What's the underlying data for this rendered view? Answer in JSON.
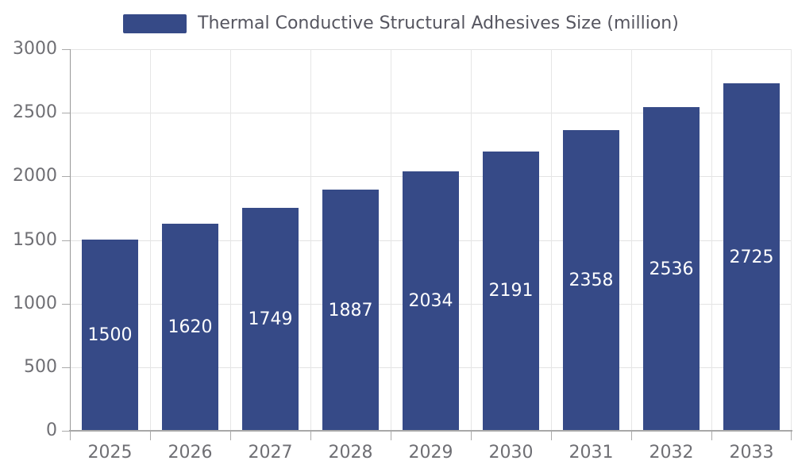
{
  "chart_data": {
    "type": "bar",
    "title": "Thermal Conductive Structural Adhesives Size (million)",
    "legend_entries": [
      "Thermal Conductive Structural Adhesives Size (million)"
    ],
    "legend_position": "top-center",
    "categories": [
      "2025",
      "2026",
      "2027",
      "2028",
      "2029",
      "2030",
      "2031",
      "2032",
      "2033"
    ],
    "values": [
      1500,
      1620,
      1749,
      1887,
      2034,
      2191,
      2358,
      2536,
      2725
    ],
    "value_labels_shown": true,
    "xlabel": "",
    "ylabel": "",
    "ylim": [
      0,
      3000
    ],
    "y_ticks": [
      0,
      500,
      1000,
      1500,
      2000,
      2500,
      3000
    ],
    "grid": "on"
  },
  "colors": {
    "bar_fill": "#364A87",
    "value_label": "#FFFFFF",
    "axis_label": "#6F6F74",
    "legend_text": "#565660",
    "gridline": "#E3E3E3",
    "axis_line": "#A8A8A8"
  }
}
